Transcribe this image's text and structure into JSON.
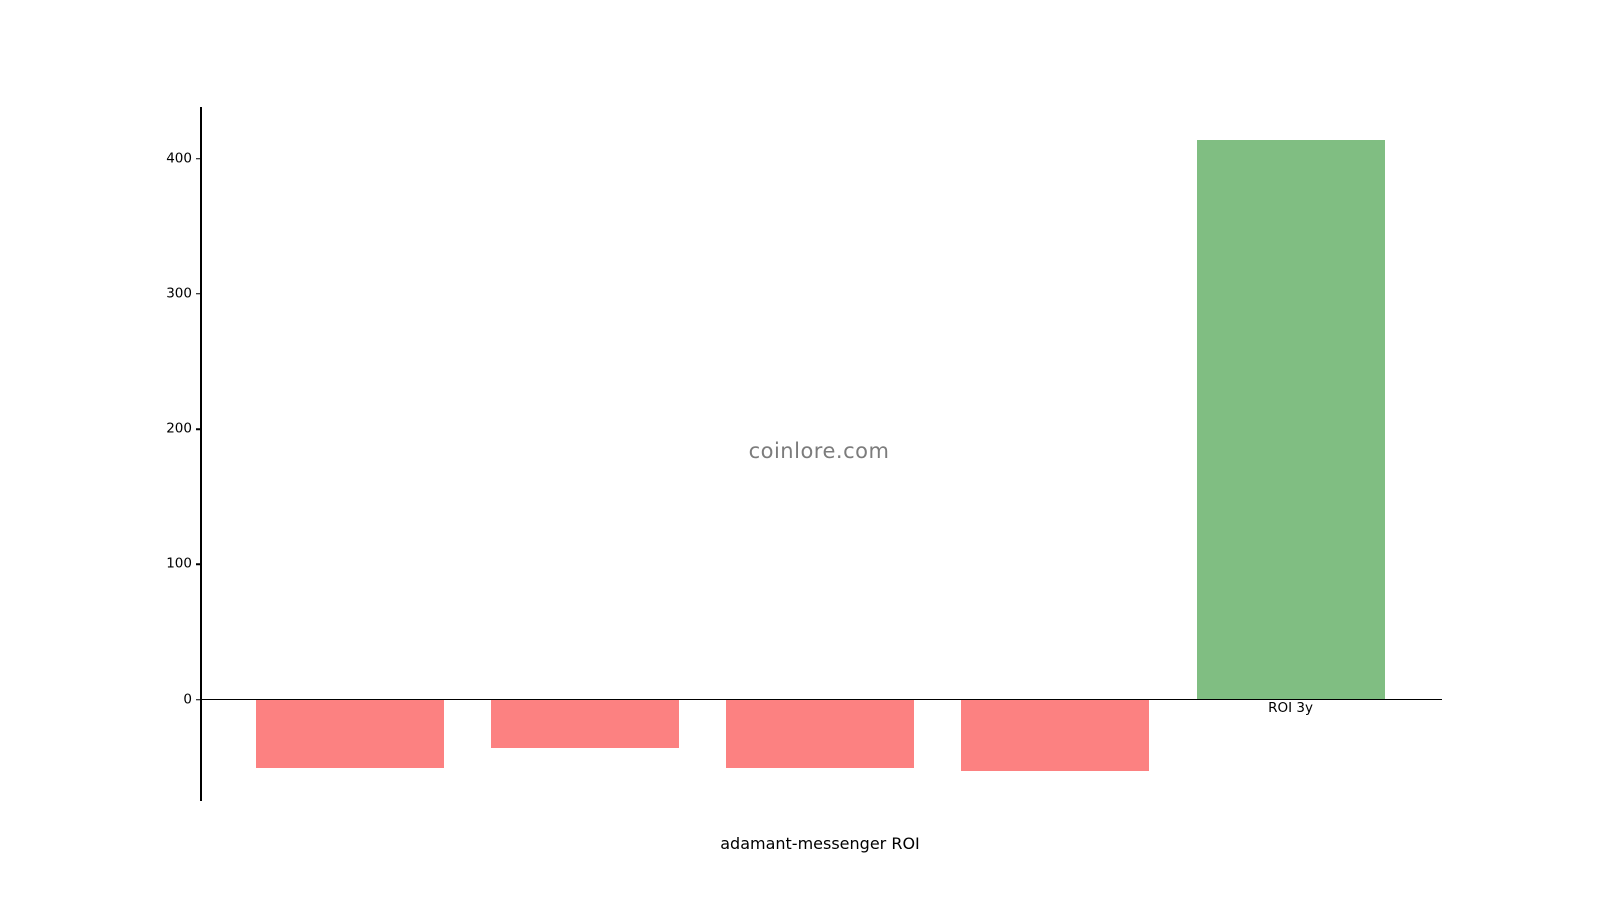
{
  "page": {
    "background": "#ffffff"
  },
  "watermark": {
    "text": "coinlore.com",
    "color": "#7c7c7c"
  },
  "chart_data": {
    "type": "bar",
    "title": "adamant-messenger ROI",
    "xlabel": "adamant-messenger ROI",
    "ylabel": "",
    "categories": [
      "",
      "",
      "",
      "",
      "ROI 3y"
    ],
    "values": [
      -50,
      -35,
      -50,
      -52,
      414
    ],
    "bar_colors": [
      "#fc8181",
      "#fc8181",
      "#fc8181",
      "#fc8181",
      "#80be82"
    ],
    "negative_color": "#fc8181",
    "positive_color": "#80be82",
    "yticks": [
      0,
      100,
      200,
      300,
      400
    ],
    "ylim": [
      -75,
      438
    ],
    "grid": false,
    "legend": null,
    "axis_color": "#000000",
    "watermark_text": "coinlore.com"
  }
}
